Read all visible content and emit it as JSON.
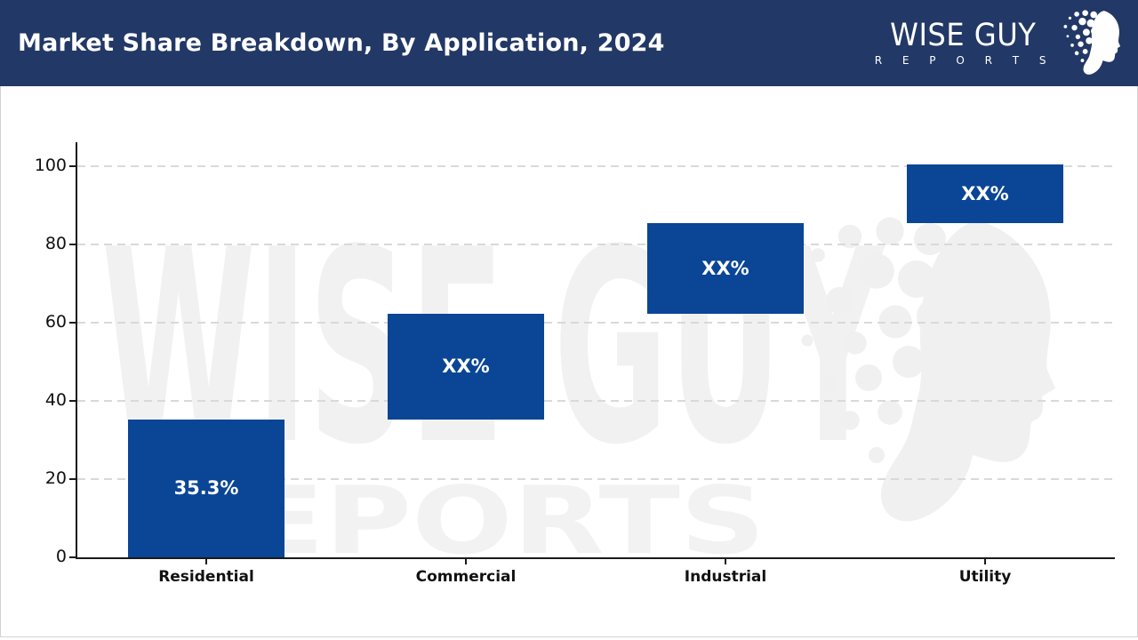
{
  "header": {
    "title": "Market Share Breakdown, By Application, 2024",
    "bg_color": "#223866",
    "logo": {
      "line1": "WISE GUY",
      "line2": "R E P O R T S"
    }
  },
  "watermark": {
    "line1": "WISE GUY",
    "line2": "R E P O R T S"
  },
  "chart_data": {
    "type": "bar",
    "subtype": "floating-waterfall",
    "title": "Market Share Breakdown, By Application, 2024",
    "xlabel": "",
    "ylabel": "",
    "categories": [
      "Residential",
      "Commercial",
      "Industrial",
      "Utility"
    ],
    "segments": [
      {
        "category": "Residential",
        "start": 0,
        "end": 35.3,
        "label": "35.3%"
      },
      {
        "category": "Commercial",
        "start": 35.3,
        "end": 62.3,
        "label": "XX%"
      },
      {
        "category": "Industrial",
        "start": 62.3,
        "end": 85.5,
        "label": "XX%"
      },
      {
        "category": "Utility",
        "start": 85.5,
        "end": 100.5,
        "label": "XX%"
      }
    ],
    "yticks": [
      0,
      20,
      40,
      60,
      80,
      100
    ],
    "ylim": [
      0,
      106
    ],
    "grid": "horizontal-dashed",
    "legend": "none",
    "bar_color": "#0a4596",
    "bar_label_color": "#ffffff",
    "axis_color": "#1a1a1a",
    "gridline_color": "#d9d9d9"
  }
}
